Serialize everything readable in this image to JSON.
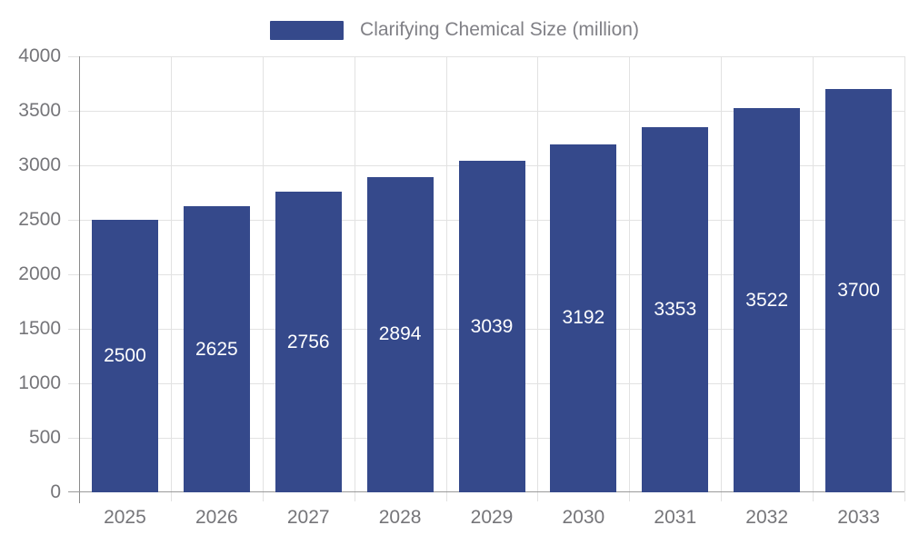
{
  "legend": {
    "label": "Clarifying Chemical Size (million)",
    "swatch_color": "#35498b"
  },
  "chart_data": {
    "type": "bar",
    "title": "Clarifying Chemical Size (million)",
    "categories": [
      "2025",
      "2026",
      "2027",
      "2028",
      "2029",
      "2030",
      "2031",
      "2032",
      "2033"
    ],
    "series": [
      {
        "name": "Clarifying Chemical Size (million)",
        "values": [
          2500,
          2625,
          2756,
          2894,
          3039,
          3192,
          3353,
          3522,
          3700
        ]
      }
    ],
    "xlabel": "",
    "ylabel": "",
    "ylim": [
      0,
      4000
    ],
    "yticks": [
      0,
      500,
      1000,
      1500,
      2000,
      2500,
      3000,
      3500,
      4000
    ],
    "grid": true,
    "legend_position": "top-center",
    "bar_color": "#35498b",
    "bar_label_color": "#ffffff",
    "axis_label_color": "#757579",
    "gridline_color": "#e2e2e2"
  }
}
